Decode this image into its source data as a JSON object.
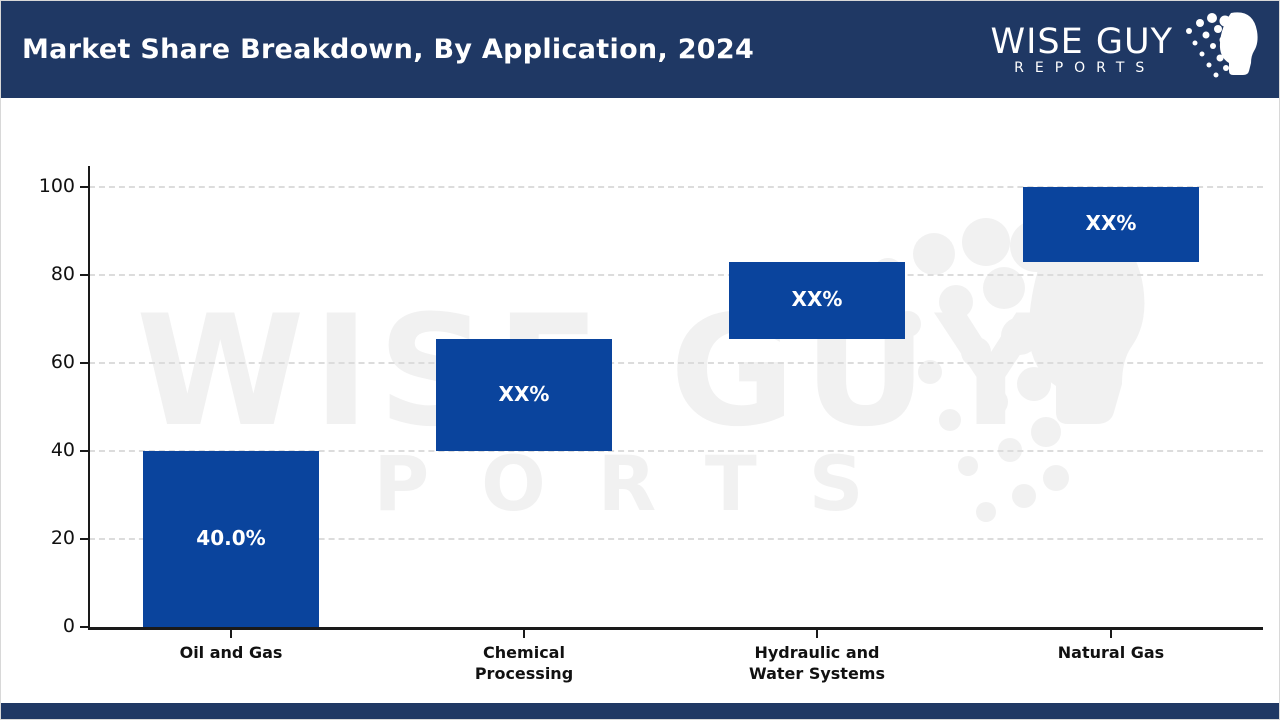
{
  "header": {
    "title": "Market Share Breakdown, By Application, 2024",
    "bg_color": "#1f3864",
    "logo": {
      "line1": "WISE GUY",
      "line2": "REPORTS"
    }
  },
  "footer": {
    "bg_color": "#1f3864"
  },
  "watermark": {
    "line1": "WISE GUY",
    "line2": "REPORTS"
  },
  "chart_data": {
    "type": "bar",
    "variant": "waterfall",
    "title": "Market Share Breakdown, By Application, 2024",
    "categories": [
      "Oil and Gas",
      "Chemical Processing",
      "Hydraulic and Water Systems",
      "Natural Gas"
    ],
    "category_label_lines": [
      [
        "Oil and Gas"
      ],
      [
        "Chemical",
        "Processing"
      ],
      [
        "Hydraulic and",
        "Water Systems"
      ],
      [
        "Natural Gas"
      ]
    ],
    "segments": [
      {
        "category": "Oil and Gas",
        "start": 0,
        "end": 40,
        "label": "40.0%"
      },
      {
        "category": "Chemical Processing",
        "start": 40,
        "end": 65.5,
        "label": "XX%"
      },
      {
        "category": "Hydraulic and Water Systems",
        "start": 65.5,
        "end": 83,
        "label": "XX%"
      },
      {
        "category": "Natural Gas",
        "start": 83,
        "end": 100,
        "label": "XX%"
      }
    ],
    "ylim": [
      0,
      100
    ],
    "yticks": [
      0,
      20,
      40,
      60,
      80,
      100
    ],
    "xlabel": "",
    "ylabel": "",
    "grid": "horizontal-dashed",
    "gridline_color": "#dcdcdc",
    "axis_color": "#1a1a1a",
    "bar_color": "#0a449d",
    "bar_label_color": "#ffffff",
    "legend": "none"
  }
}
